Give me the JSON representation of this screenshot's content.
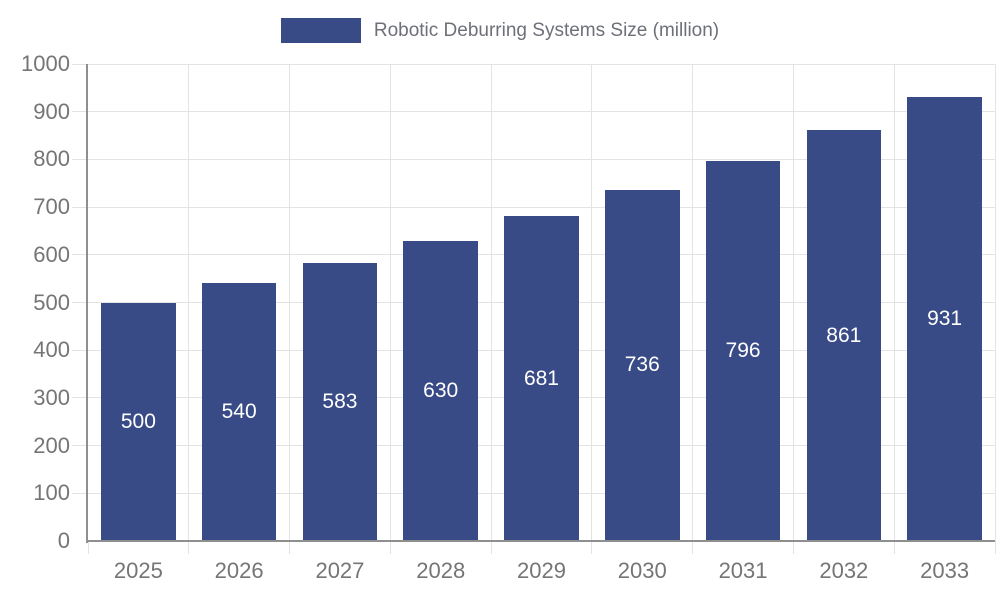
{
  "legend": {
    "label": "Robotic Deburring Systems Size (million)"
  },
  "chart_data": {
    "type": "bar",
    "title": "Robotic Deburring Systems Size (million)",
    "series_name": "Robotic Deburring Systems Size (million)",
    "categories": [
      "2025",
      "2026",
      "2027",
      "2028",
      "2029",
      "2030",
      "2031",
      "2032",
      "2033"
    ],
    "values": [
      500,
      540,
      583,
      630,
      681,
      736,
      796,
      861,
      931
    ],
    "value_labels": [
      "500",
      "540",
      "583",
      "630",
      "681",
      "736",
      "796",
      "861",
      "931"
    ],
    "xlabel": "",
    "ylabel": "",
    "ylim": [
      0,
      1000
    ],
    "yticks": [
      0,
      100,
      200,
      300,
      400,
      500,
      600,
      700,
      800,
      900,
      1000
    ],
    "grid": true,
    "legend_position": "top",
    "colors": {
      "bar": "#394B86",
      "value_label": "#FFFFFF",
      "axis_line": "#8F8F8F",
      "gridline": "#E3E3E3",
      "tick_label": "#757575",
      "legend_text": "#6E7079",
      "background": "#FFFFFF"
    }
  }
}
